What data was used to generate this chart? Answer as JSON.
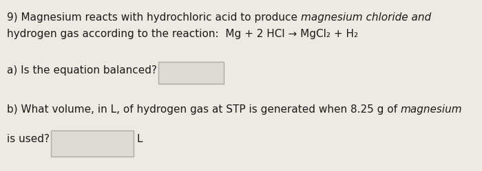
{
  "bg_color": "#edeae4",
  "text_color": "#1a1a1a",
  "box_edge_color": "#aaaaaa",
  "box_face_color": "#ddd9d3",
  "fontsize": 11.0,
  "figsize": [
    7.0,
    2.49
  ],
  "dpi": 100,
  "line1_normal": "9) Magnesium reacts with hydrochloric acid to produce ",
  "line1_italic": "magnesium chloride and",
  "line2": "hydrogen gas according to the reaction:  Mg + 2 HCl → MgCl₂ + H₂",
  "line_a": "a) Is the equation balanced?",
  "line_b1_normal": "b) What volume, in L, of hydrogen gas at STP is generated when 8.25 g of ",
  "line_b1_italic": "magnesium",
  "line_b2": "is used?",
  "unit": "L"
}
